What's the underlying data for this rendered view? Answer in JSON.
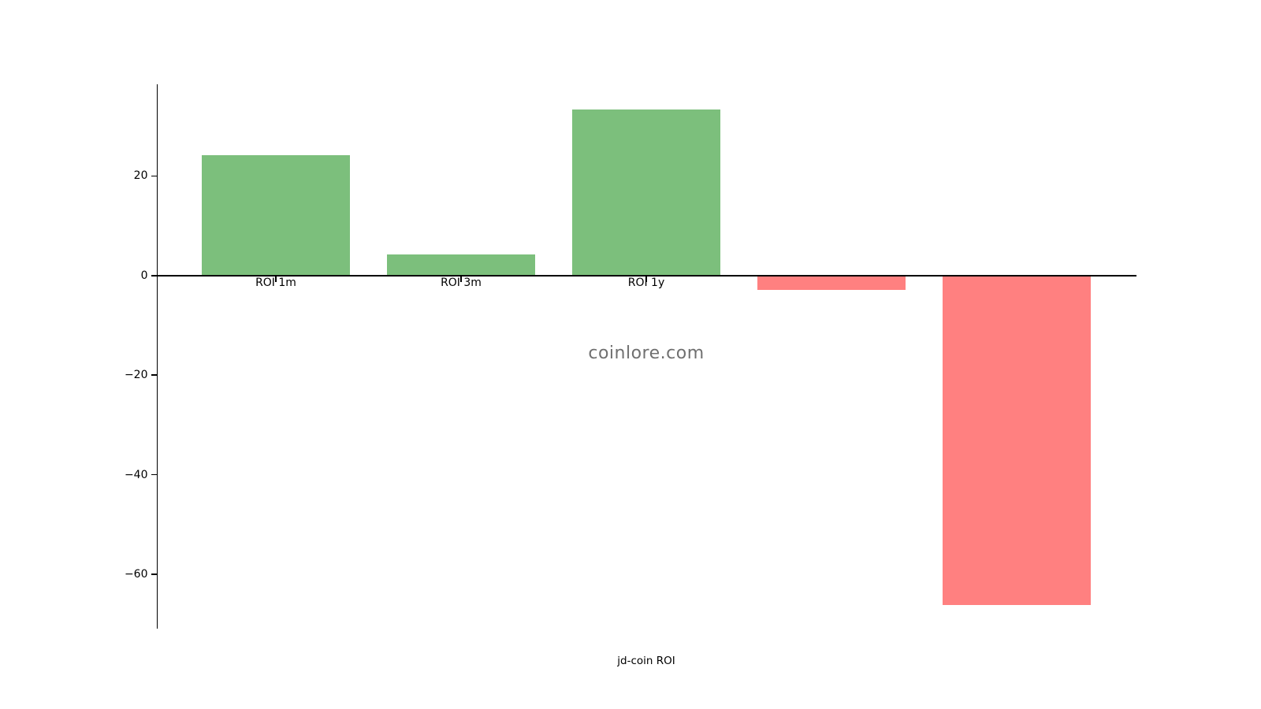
{
  "page": {
    "background": "#ffffff"
  },
  "chart_data": {
    "type": "bar",
    "categories": [
      "ROI 1m",
      "ROI 3m",
      "ROI 1y",
      "",
      ""
    ],
    "values": [
      24.2,
      4.2,
      33.3,
      -2.9,
      -66.2
    ],
    "title": "",
    "xlabel": "jd-coin ROI",
    "ylabel": "",
    "ylim": [
      -70.9,
      38.4
    ],
    "yticks": [
      20,
      0,
      -20,
      -40,
      -60
    ],
    "ytick_labels": [
      "20",
      "0",
      "−20",
      "−40",
      "−60"
    ],
    "grid": false,
    "legend": null,
    "axis_color": "#000000",
    "bar_colors": {
      "positive": "#7cbf7c",
      "negative": "#ff8080"
    },
    "watermark": {
      "text": "coinlore.com",
      "color": "#707070"
    }
  }
}
